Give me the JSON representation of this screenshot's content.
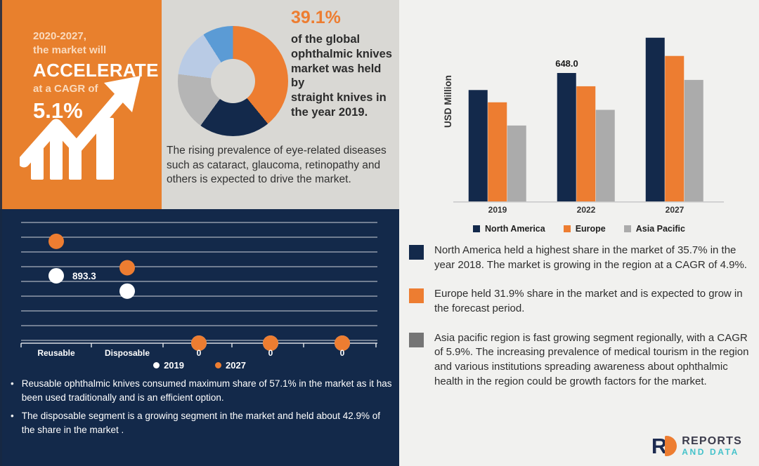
{
  "promo": {
    "line1": "2020-2027,",
    "line2": "the market will",
    "headline": "ACCELERATE",
    "sub": "at a CAGR of",
    "value": "5.1%"
  },
  "donut_section": {
    "stat": "39.1%",
    "stat_desc_lines": [
      "of the global",
      "ophthalmic knives",
      "market was held by",
      "straight knives in",
      "the year 2019."
    ],
    "paragraph": "The rising prevalence of eye-related diseases such as cataract, glaucoma, retinopathy and others is expected to drive the market."
  },
  "chart_data": [
    {
      "id": "product-type-donut",
      "type": "pie",
      "donut": true,
      "slices": [
        {
          "label": "Straight knives",
          "value": 39.1,
          "color": "#ED7D31"
        },
        {
          "label": "",
          "value": 20.9,
          "color": "#13294B"
        },
        {
          "label": "",
          "value": 17.0,
          "color": "#B5B5B5"
        },
        {
          "label": "",
          "value": 14.0,
          "color": "#B9CBE5"
        },
        {
          "label": "",
          "value": 9.0,
          "color": "#5B9BD5"
        }
      ]
    },
    {
      "id": "regional-bar-chart",
      "type": "bar",
      "title": "",
      "ylabel": "USD Million",
      "categories": [
        "2019",
        "2022",
        "2027"
      ],
      "series": [
        {
          "name": "North America",
          "color": "#13294B",
          "values": [
            562,
            648,
            826
          ]
        },
        {
          "name": "Europe",
          "color": "#ED7D31",
          "values": [
            500,
            581,
            734
          ]
        },
        {
          "name": "Asia Pacific",
          "color": "#ABABAB",
          "values": [
            383,
            462,
            613
          ]
        }
      ],
      "data_labels": [
        {
          "series": "North America",
          "category": "2022",
          "text": "648.0"
        }
      ],
      "ylim": [
        0,
        1000
      ],
      "grid": false,
      "legend_position": "bottom"
    },
    {
      "id": "segment-dot-chart",
      "type": "scatter",
      "categories": [
        "Reusable",
        "Disposable",
        "0",
        "0",
        "0"
      ],
      "series": [
        {
          "name": "2019",
          "color": "#FFFFFF",
          "values": [
            893.3,
            690,
            0,
            0,
            0
          ]
        },
        {
          "name": "2027",
          "color": "#ED7D31",
          "values": [
            1350,
            1000,
            0,
            0,
            0
          ]
        }
      ],
      "data_labels": [
        {
          "series": "2019",
          "category": "Reusable",
          "text": "893.3"
        }
      ],
      "ylim": [
        0,
        1600
      ],
      "grid": true,
      "legend_position": "bottom"
    }
  ],
  "scatter_notes": [
    "Reusable ophthalmic knives consumed maximum share of 57.1% in the market as it has been used traditionally and is an efficient option.",
    "The disposable segment is a growing segment in the market and held about 42.9% of the share in the market ."
  ],
  "region_bullets": [
    {
      "color": "#13294B",
      "text": "North America held a highest share in the market of 35.7% in the year 2018. The market is growing in the region at a CAGR of 4.9%."
    },
    {
      "color": "#ED7D31",
      "text": "Europe held 31.9% share in the market and is expected to grow in the forecast period."
    },
    {
      "color": "#757575",
      "text": "Asia pacific region is fast growing segment regionally, with a CAGR of 5.9%. The increasing prevalence of medical tourism in the region and various institutions spreading awareness about ophthalmic health in the region could be growth factors for the market."
    }
  ],
  "logo": {
    "mark": "R",
    "line1": "REPORTS",
    "line2": "AND DATA"
  },
  "colors": {
    "orange": "#ED7D31",
    "navy": "#13294A",
    "panel_gray": "#D9D8D4",
    "bg": "#F1F1EF"
  }
}
